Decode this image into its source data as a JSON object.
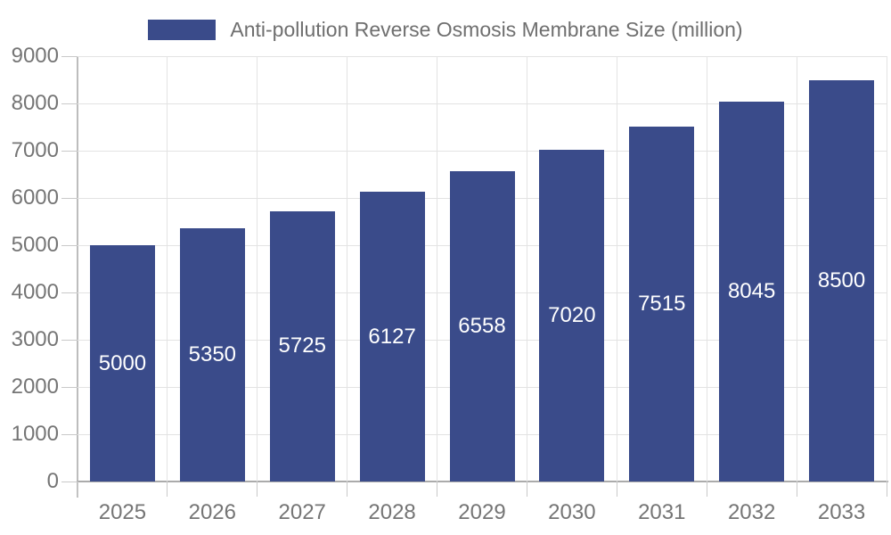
{
  "chart_data": {
    "type": "bar",
    "title": "Anti-pollution Reverse Osmosis Membrane Size (million)",
    "categories": [
      "2025",
      "2026",
      "2027",
      "2028",
      "2029",
      "2030",
      "2031",
      "2032",
      "2033"
    ],
    "values": [
      5000,
      5350,
      5725,
      6127,
      6558,
      7020,
      7515,
      8045,
      8500
    ],
    "series": [
      {
        "name": "Anti-pollution Reverse Osmosis Membrane Size (million)",
        "values": [
          5000,
          5350,
          5725,
          6127,
          6558,
          7020,
          7515,
          8045,
          8500
        ]
      }
    ],
    "xlabel": "",
    "ylabel": "",
    "ylim": [
      0,
      9000
    ],
    "ytick_step": 1000,
    "ytick_labels": [
      "0",
      "1000",
      "2000",
      "3000",
      "4000",
      "5000",
      "6000",
      "7000",
      "8000",
      "9000"
    ],
    "grid": "both",
    "legend_position": "top-center",
    "value_labels": "inside-center",
    "colors": {
      "bar": "#3a4b8a",
      "value_label_text": "#ffffff",
      "axis_text": "#757575",
      "legend_text": "#6f6f6f",
      "gridline": "#e3e3e3",
      "axis_line": "#ababab",
      "tick": "#c9c9c9",
      "background": "#ffffff"
    }
  }
}
